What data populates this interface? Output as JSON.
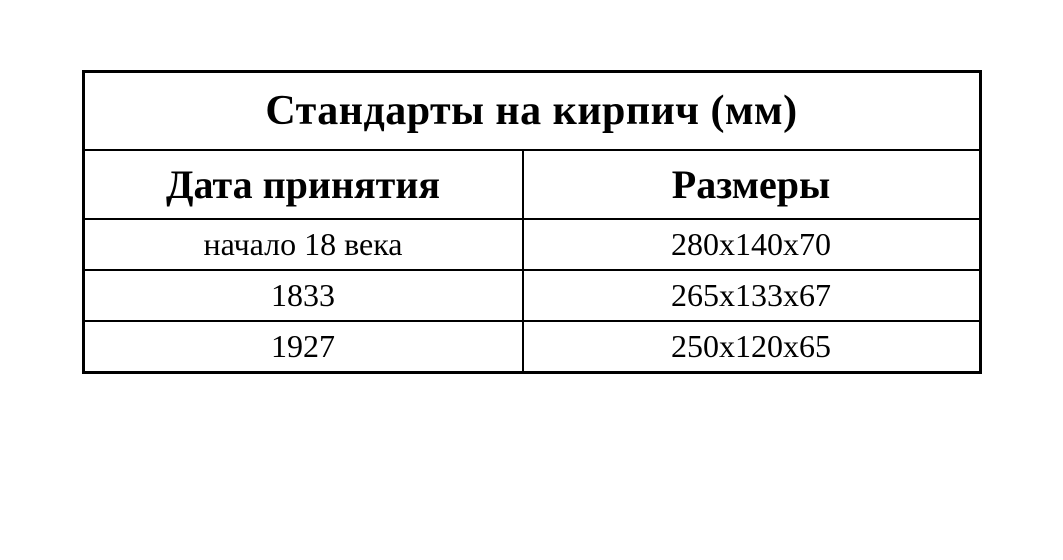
{
  "table": {
    "type": "table",
    "title": "Стандарты на кирпич (мм)",
    "columns": [
      "Дата принятия",
      "Размеры"
    ],
    "rows": [
      [
        "начало 18 века",
        "280х140х70"
      ],
      [
        "1833",
        "265х133х67"
      ],
      [
        "1927",
        "250х120х65"
      ]
    ],
    "border_color": "#000000",
    "background_color": "#ffffff",
    "text_color": "#000000",
    "outer_border_width": 3,
    "inner_border_width": 2,
    "title_fontsize": 42,
    "header_fontsize": 40,
    "cell_fontsize": 32,
    "title_fontweight": "bold",
    "header_fontweight": "bold",
    "cell_fontweight": "normal",
    "font_family": "Georgia, 'Times New Roman', serif",
    "column_widths": [
      "49%",
      "51%"
    ],
    "text_align": "center"
  }
}
